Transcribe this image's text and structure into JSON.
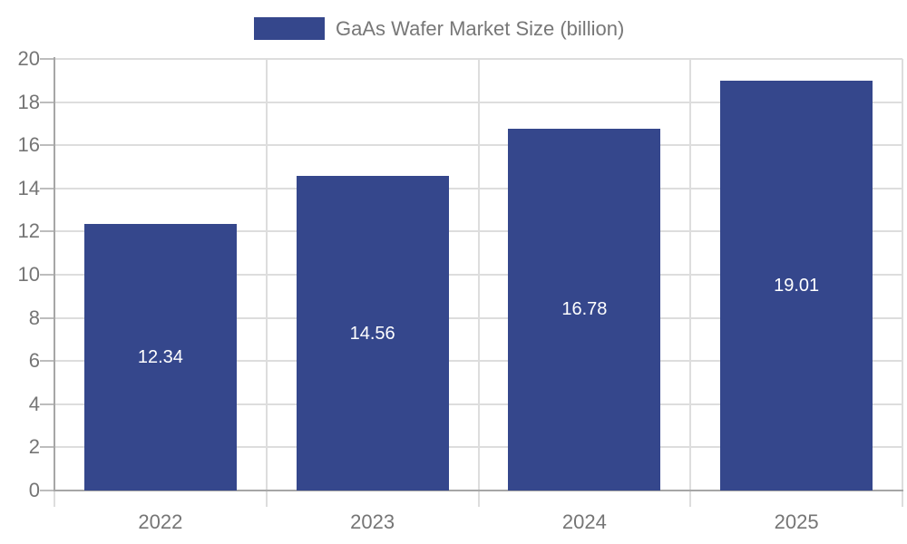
{
  "chart_data": {
    "type": "bar",
    "title": "GaAs Wafer Market Size (billion)",
    "legend": {
      "label": "GaAs Wafer Market Size (billion)",
      "position": "top-center"
    },
    "categories": [
      "2022",
      "2023",
      "2024",
      "2025"
    ],
    "series": [
      {
        "name": "GaAs Wafer Market Size (billion)",
        "values": [
          12.34,
          14.56,
          16.78,
          19.01
        ],
        "value_labels": [
          "12.34",
          "14.56",
          "16.78",
          "19.01"
        ]
      }
    ],
    "xlabel": "",
    "ylabel": "",
    "ylim": [
      0,
      20
    ],
    "ytick_step": 2,
    "ytick_labels": [
      "0",
      "2",
      "4",
      "6",
      "8",
      "10",
      "12",
      "14",
      "16",
      "18",
      "20"
    ],
    "grid": true,
    "value_label_position": "inside-center"
  },
  "colors": {
    "bar_fill": "#35478C",
    "value_label_text": "#ffffff",
    "legend_text": "#777777",
    "tick_label_text": "#757575",
    "axis_line": "#a6a6a6",
    "gridline": "#dddddd",
    "y_tick_mark": "#bdbdbd",
    "x_tick_mark": "#dddddd",
    "background": "#ffffff"
  }
}
